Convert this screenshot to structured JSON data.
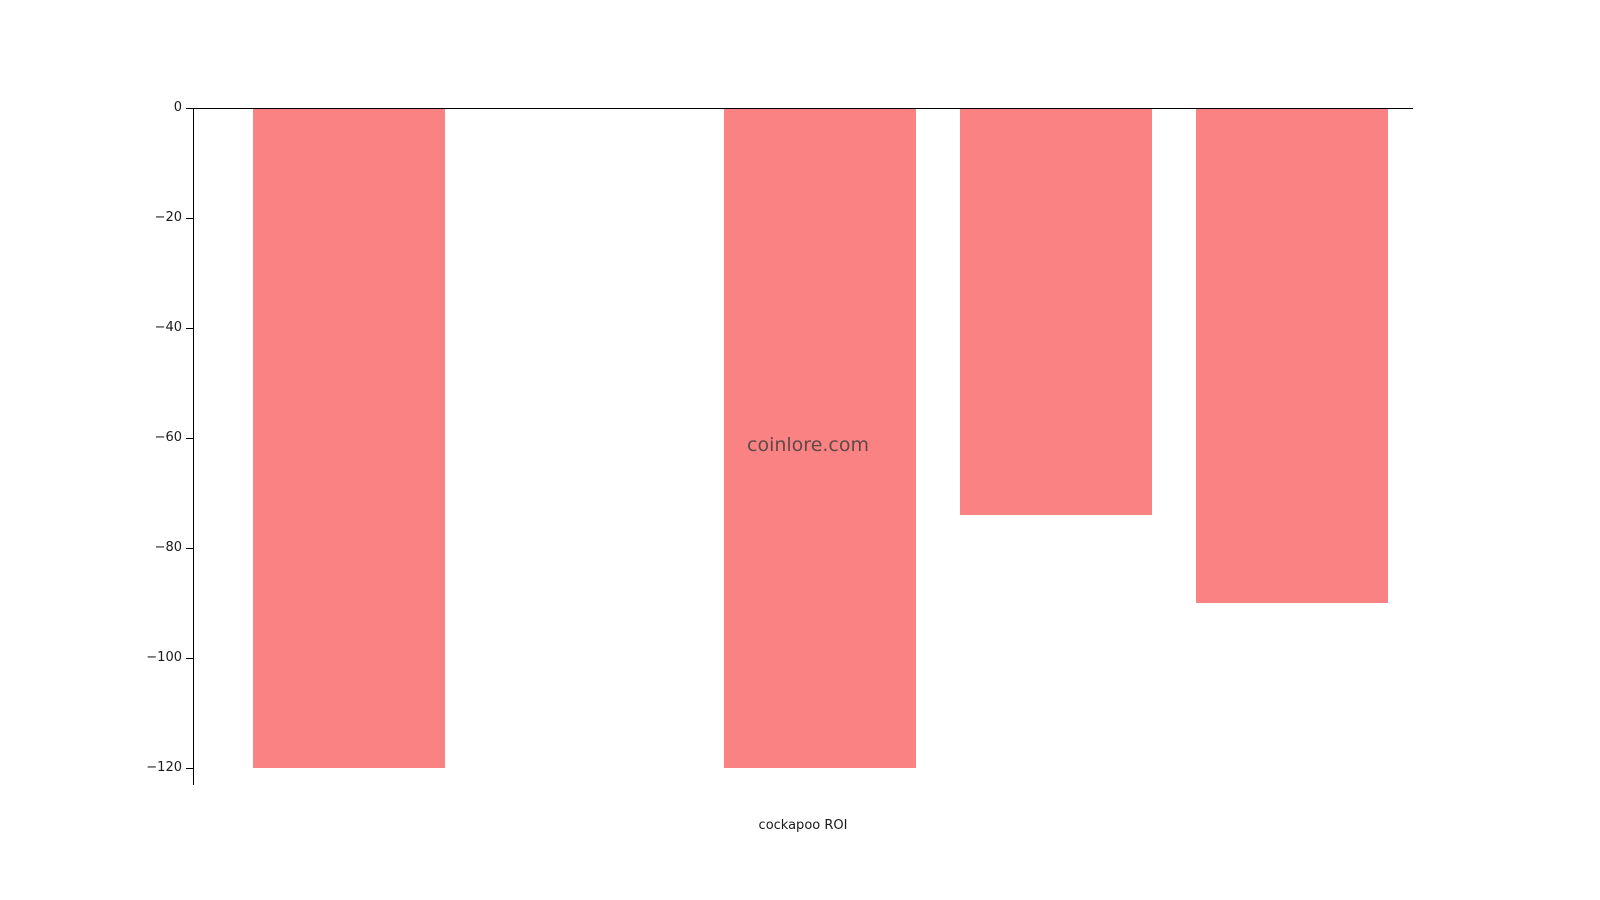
{
  "page": {
    "background": "#ffffff",
    "watermark": "coinlore.com",
    "watermark_color": "#3d3d3d"
  },
  "chart_data": {
    "type": "bar",
    "title": "",
    "xlabel": "cockapoo ROI",
    "ylabel": "",
    "categories": [
      "",
      "",
      "",
      "",
      ""
    ],
    "values": [
      -120,
      0,
      -120,
      -74,
      -90
    ],
    "bar_color": "#fa8282",
    "axis_color": "#000000",
    "tick_label_color": "#1a1a1a",
    "ylim": [
      -123,
      0
    ],
    "yticks": {
      "values": [
        0,
        -20,
        -40,
        -60,
        -80,
        -100,
        -120
      ],
      "labels": [
        "0",
        "−20",
        "−40",
        "−60",
        "−80",
        "−100",
        "−120"
      ]
    },
    "grid": false,
    "legend": null
  }
}
